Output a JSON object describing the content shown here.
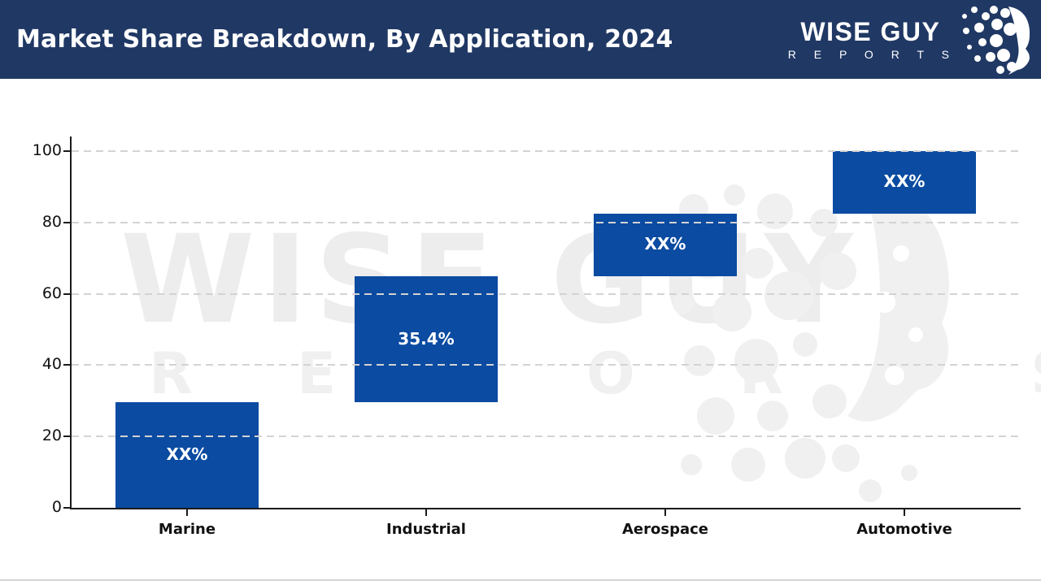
{
  "header": {
    "title": "Market Share Breakdown, By Application, 2024",
    "bg_color": "#203864",
    "logo": {
      "line1": "WISE GUY",
      "line2": "R E P O R T S"
    }
  },
  "chart_data": {
    "type": "bar",
    "subtype": "waterfall",
    "title": "Market Share Breakdown, By Application, 2024",
    "xlabel": "",
    "ylabel": "",
    "categories": [
      "Marine",
      "Industrial",
      "Aerospace",
      "Automotive"
    ],
    "segments": [
      {
        "category": "Marine",
        "start": 0,
        "end": 29.5,
        "value": 29.5,
        "label": "XX%"
      },
      {
        "category": "Industrial",
        "start": 29.5,
        "end": 64.9,
        "value": 35.4,
        "label": "35.4%"
      },
      {
        "category": "Aerospace",
        "start": 64.9,
        "end": 82.5,
        "value": 17.6,
        "label": "XX%"
      },
      {
        "category": "Automotive",
        "start": 82.5,
        "end": 100,
        "value": 17.5,
        "label": "XX%"
      }
    ],
    "yticks": [
      0,
      20,
      40,
      60,
      80,
      100
    ],
    "ylim": [
      0,
      104
    ],
    "bar_color": "#0b4ba1",
    "label_color": "#ffffff",
    "grid": "horizontal dashed, light gray, drawn over bars",
    "legend": "none",
    "watermark": {
      "line1": "WISE GUY",
      "line2": "R E P O R T S"
    }
  }
}
